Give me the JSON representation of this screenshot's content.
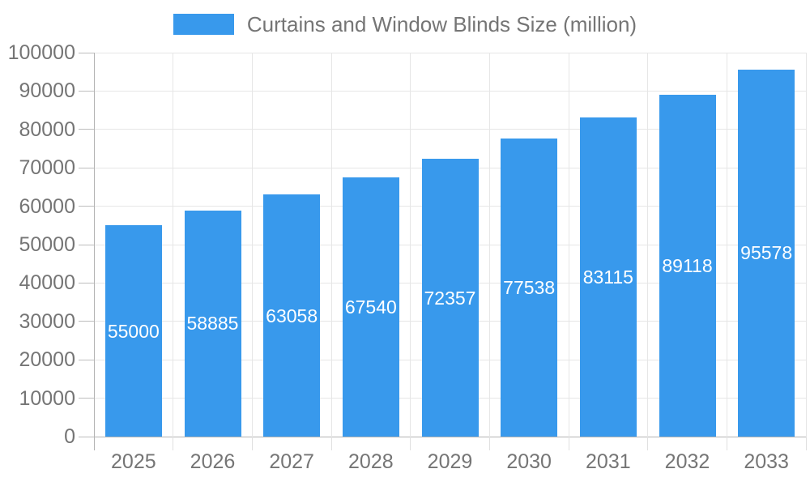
{
  "chart_data": {
    "type": "bar",
    "title": "Curtains and Window Blinds Size (million)",
    "categories": [
      "2025",
      "2026",
      "2027",
      "2028",
      "2029",
      "2030",
      "2031",
      "2032",
      "2033"
    ],
    "series": [
      {
        "name": "Curtains and Window Blinds Size (million)",
        "values": [
          55000,
          58885,
          63058,
          67540,
          72357,
          77538,
          83115,
          89118,
          95578
        ]
      }
    ],
    "value_labels": [
      "55000",
      "58885",
      "63058",
      "67540",
      "72357",
      "77538",
      "83115",
      "89118",
      "95578"
    ],
    "y_tick_labels": [
      "0",
      "10000",
      "20000",
      "30000",
      "40000",
      "50000",
      "60000",
      "70000",
      "80000",
      "90000",
      "100000"
    ],
    "ylim": [
      0,
      100000
    ],
    "ytick_step": 10000,
    "xlabel": "",
    "ylabel": "",
    "grid": true,
    "legend_position": "top"
  },
  "colors": {
    "bar": "#3899EC",
    "grid_line": "#E6E6E6",
    "axis_line": "#B3B3B3",
    "y_tick": "#BDBDBD",
    "x_tick": "#E0E0E0",
    "axis_text": "#757575",
    "value_text": "#FFFFFF",
    "background": "#FFFFFF"
  }
}
